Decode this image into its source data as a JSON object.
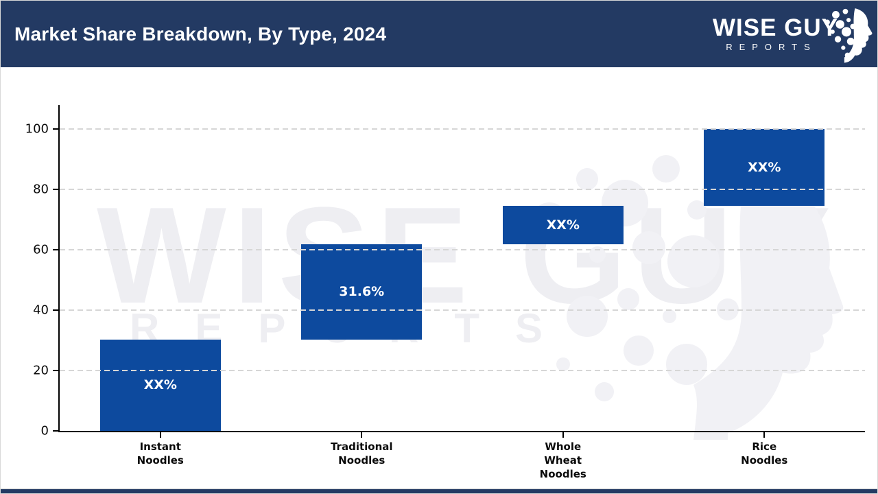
{
  "header": {
    "title": "Market Share Breakdown, By Type, 2024",
    "logo": {
      "line1": "WISE GUY",
      "line2": "REPORTS"
    },
    "bg_color": "#233a63"
  },
  "watermark": {
    "big": "WISE GUY",
    "small": "REPORTS"
  },
  "chart_data": {
    "type": "bar",
    "subtype": "waterfall-floating-bars",
    "title": "Market Share Breakdown, By Type, 2024",
    "xlabel": "",
    "ylabel": "",
    "categories": [
      "Instant Noodles",
      "Traditional Noodles",
      "Whole Wheat Noodles",
      "Rice Noodles"
    ],
    "xtick_labels": [
      "Instant Noodles",
      "Traditional\nNoodles",
      "Whole Wheat\nNoodles",
      "Rice Noodles"
    ],
    "segments": [
      {
        "category": "Instant Noodles",
        "start": 0,
        "end": 30.3,
        "value": 30.3,
        "label": "XX%"
      },
      {
        "category": "Traditional Noodles",
        "start": 30.3,
        "end": 61.9,
        "value": 31.6,
        "label": "31.6%"
      },
      {
        "category": "Whole Wheat Noodles",
        "start": 61.9,
        "end": 74.5,
        "value": 12.6,
        "label": "XX%"
      },
      {
        "category": "Rice Noodles",
        "start": 74.5,
        "end": 100,
        "value": 25.5,
        "label": "XX%"
      }
    ],
    "ylim": [
      0,
      100
    ],
    "yticks": [
      0,
      20,
      40,
      60,
      80,
      100
    ],
    "grid": "horizontal-dashed-over-bars",
    "legend": false,
    "bar_color": "#0d4a9e",
    "bar_label_color": "#ffffff"
  }
}
